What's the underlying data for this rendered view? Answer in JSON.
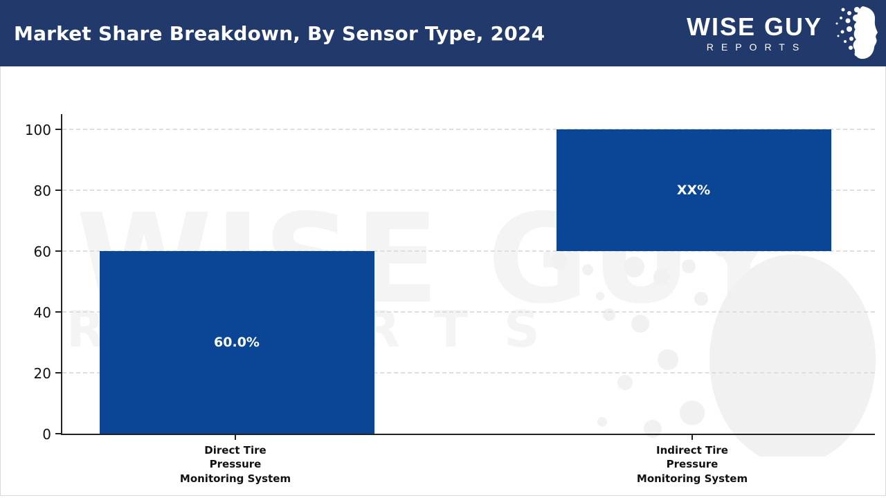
{
  "header": {
    "title": "Market Share Breakdown, By Sensor Type, 2024",
    "logo": {
      "primary": "WISE GUY",
      "secondary": "REPORTS",
      "face_icon": "dotted-face-profile"
    }
  },
  "watermark": {
    "primary": "WISE GUY",
    "secondary": "REPORTS"
  },
  "chart_data": {
    "type": "bar",
    "variant": "floating-segment-waterfall",
    "title": "Market Share Breakdown, By Sensor Type, 2024",
    "categories": [
      "Direct Tire\nPressure\nMonitoring System",
      "Indirect Tire\nPressure\nMonitoring System"
    ],
    "bars": [
      {
        "category": "Direct Tire Pressure Monitoring System",
        "from": 0,
        "to": 60,
        "label": "60.0%"
      },
      {
        "category": "Indirect Tire Pressure Monitoring System",
        "from": 60,
        "to": 100,
        "label": "XX%"
      }
    ],
    "values_pct": [
      60,
      40
    ],
    "yticks": [
      0,
      20,
      40,
      60,
      80,
      100
    ],
    "ylim": [
      0,
      105
    ],
    "xlabel": "",
    "ylabel": "",
    "grid": "horizontal dashed",
    "legend": "none",
    "bar_color": "#0a4596",
    "bar_label_color": "#ffffff"
  },
  "colors": {
    "header_bg": "#213a6b",
    "bar": "#0a4596",
    "axis": "#222222",
    "gridline": "#dedede",
    "watermark": "#f4f4f4",
    "frame_border": "#d9d9d9",
    "background": "#ffffff"
  }
}
